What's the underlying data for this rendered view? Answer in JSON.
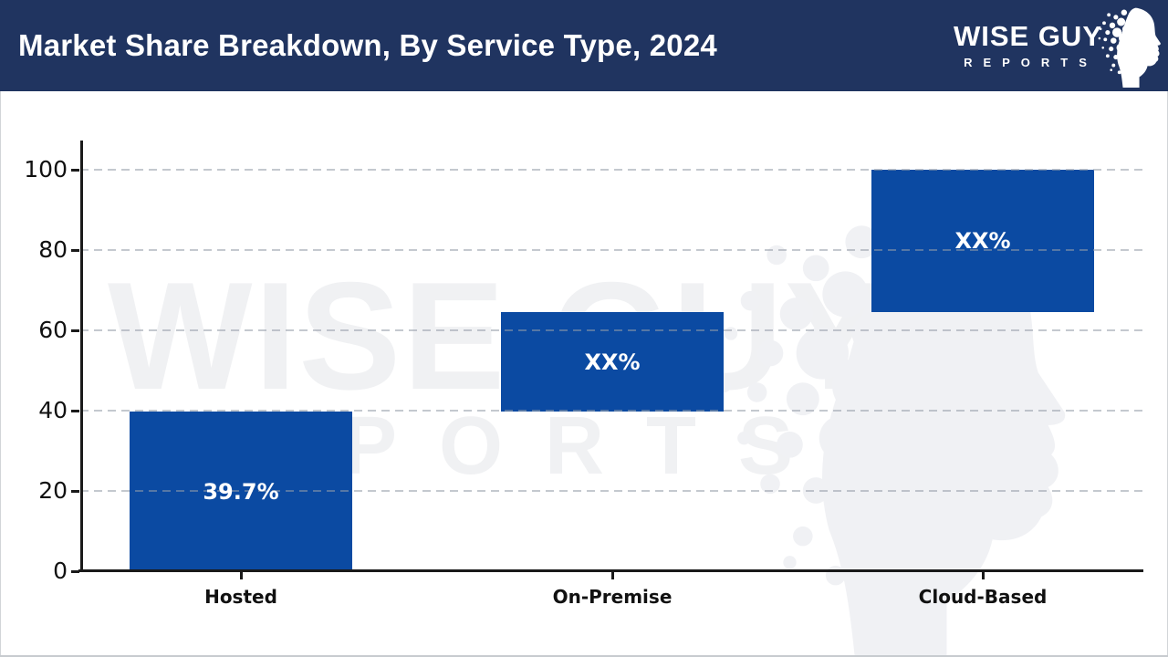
{
  "header": {
    "title": "Market Share Breakdown, By Service Type, 2024",
    "bg_color": "#203460",
    "logo": {
      "line1": "WISE GUY",
      "line2": "REPORTS"
    }
  },
  "watermark": {
    "line1": "WISE GUY",
    "line2": "REPORTS"
  },
  "chart_data": {
    "type": "bar",
    "subtype": "waterfall",
    "title": "Market Share Breakdown, By Service Type, 2024",
    "categories": [
      "Hosted",
      "On-Premise",
      "Cloud-Based"
    ],
    "segments": [
      {
        "category": "Hosted",
        "start": 0,
        "end": 39.7,
        "label": "39.7%"
      },
      {
        "category": "On-Premise",
        "start": 39.7,
        "end": 64.5,
        "label": "XX%"
      },
      {
        "category": "Cloud-Based",
        "start": 64.5,
        "end": 100,
        "label": "XX%"
      }
    ],
    "ylim": [
      0,
      100
    ],
    "yticks": [
      0,
      20,
      40,
      60,
      80,
      100
    ],
    "xlabel": "",
    "ylabel": "",
    "grid": "dashed-horizontal",
    "legend": "none",
    "bar_color": "#0b4aa2",
    "bar_label_color": "#ffffff",
    "axis_color": "#1a1a1a"
  }
}
